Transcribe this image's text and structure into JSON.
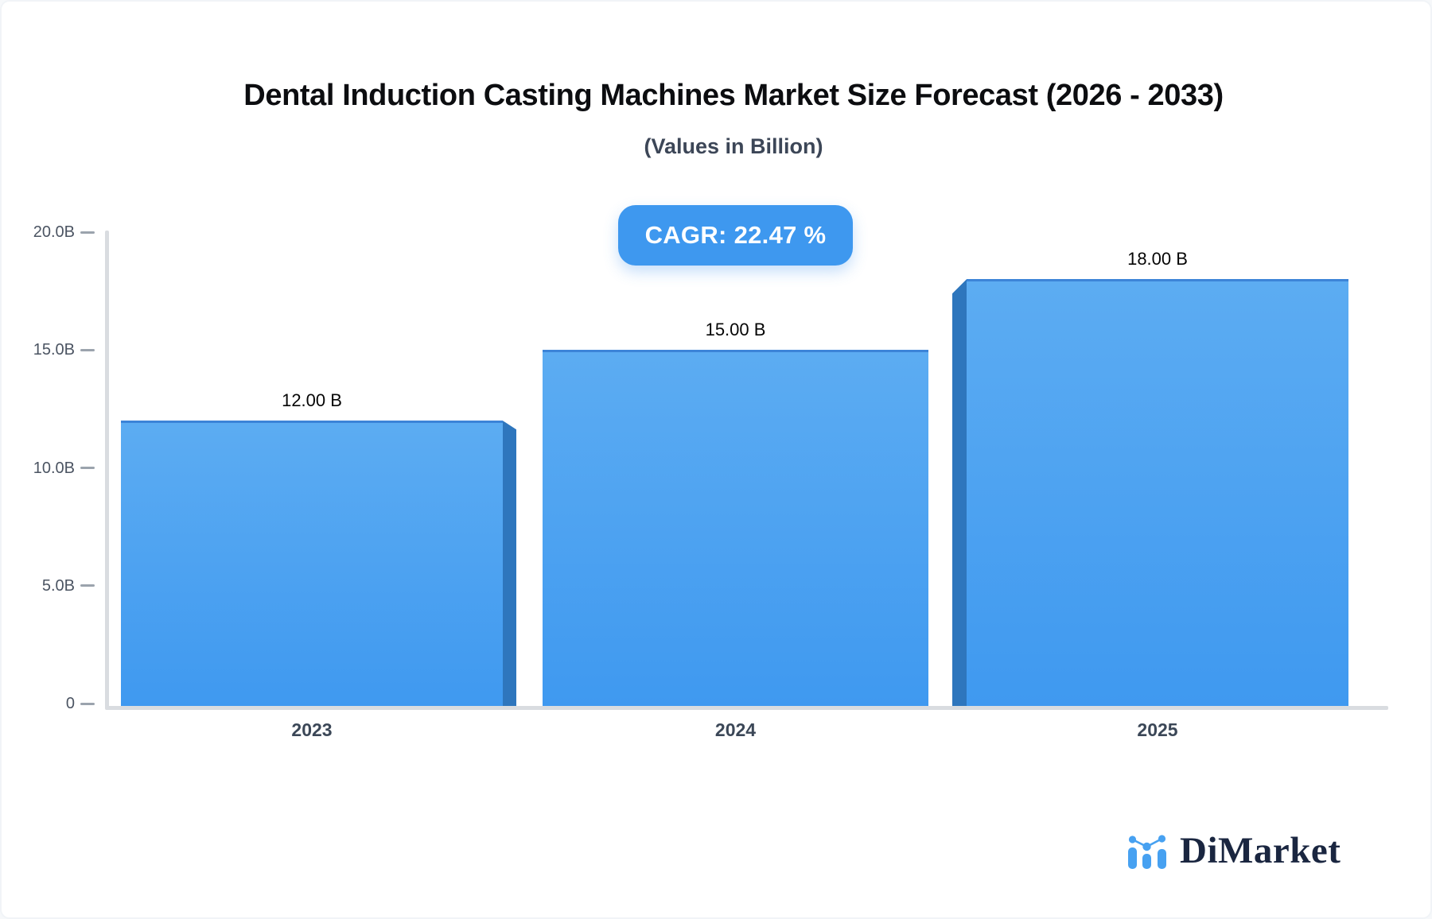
{
  "header": {
    "title": "Dental Induction Casting Machines Market Size Forecast (2026 - 2033)",
    "subtitle": "(Values in Billion)",
    "cagr_badge": "CAGR: 22.47 %"
  },
  "chart_data": {
    "type": "bar",
    "title": "Dental Induction Casting Machines Market Size Forecast (2026 - 2033)",
    "subtitle": "(Values in Billion)",
    "unit": "Billion",
    "cagr_percent": 22.47,
    "categories": [
      "2023",
      "2024",
      "2025"
    ],
    "values": [
      12,
      15,
      18
    ],
    "value_labels": [
      "12.00 B",
      "15.00 B",
      "18.00 B"
    ],
    "ylim": [
      0,
      20
    ],
    "ytick_labels": [
      "20.0B",
      "15.0B",
      "10.0B",
      "5.0B",
      "0"
    ],
    "ytick_values": [
      20,
      15,
      10,
      5,
      0
    ],
    "grid": false,
    "legend_position": "none",
    "colors": {
      "bar_gradient_top": "#5CACF2",
      "bar_gradient_bottom": "#3F99F0",
      "bar_top_border": "#3C84D8",
      "bar_side": "#2E76BD",
      "badge_bg": "#3E98EF",
      "axis_line": "#D9DCE0",
      "tick_mark": "#9BA3AD",
      "ytick_text": "#4B5462",
      "xtick_text": "#3B4757",
      "logo_blue": "#47A1F1",
      "logo_navy": "#1A2640"
    }
  },
  "footer": {
    "brand": "DiMarket"
  }
}
